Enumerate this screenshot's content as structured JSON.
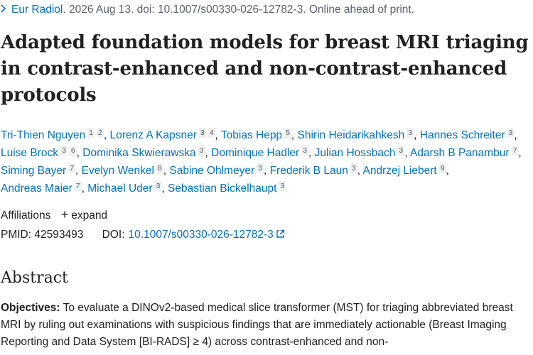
{
  "citation": {
    "journal": "Eur Radiol",
    "rest": ". 2026 Aug 13. doi: 10.1007/s00330-026-12782-3. Online ahead of print."
  },
  "title": "Adapted foundation models for breast MRI triaging in contrast-enhanced and non-contrast-enhanced protocols",
  "authors": [
    {
      "name": "Tri-Thien Nguyen",
      "affs": [
        "1",
        "2"
      ]
    },
    {
      "name": "Lorenz A Kapsner",
      "affs": [
        "3",
        "4"
      ]
    },
    {
      "name": "Tobias Hepp",
      "affs": [
        "5"
      ]
    },
    {
      "name": "Shirin Heidarikahkesh",
      "affs": [
        "3"
      ]
    },
    {
      "name": "Hannes Schreiter",
      "affs": [
        "3"
      ]
    },
    {
      "name": "Luise Brock",
      "affs": [
        "3",
        "6"
      ]
    },
    {
      "name": "Dominika Skwierawska",
      "affs": [
        "3"
      ]
    },
    {
      "name": "Dominique Hadler",
      "affs": [
        "3"
      ]
    },
    {
      "name": "Julian Hossbach",
      "affs": [
        "3"
      ]
    },
    {
      "name": "Adarsh B Panambur",
      "affs": [
        "7"
      ]
    },
    {
      "name": "Siming Bayer",
      "affs": [
        "7"
      ]
    },
    {
      "name": "Evelyn Wenkel",
      "affs": [
        "8"
      ]
    },
    {
      "name": "Sabine Ohlmeyer",
      "affs": [
        "3"
      ]
    },
    {
      "name": "Frederik B Laun",
      "affs": [
        "3"
      ]
    },
    {
      "name": "Andrzej Liebert",
      "affs": [
        "9"
      ]
    },
    {
      "name": "Andreas Maier",
      "affs": [
        "7"
      ]
    },
    {
      "name": "Michael Uder",
      "affs": [
        "3"
      ]
    },
    {
      "name": "Sebastian Bickelhaupt",
      "affs": [
        "3"
      ]
    }
  ],
  "affiliations": {
    "label": "Affiliations",
    "expand_label": "expand"
  },
  "ids": {
    "pmid_label": "PMID:",
    "pmid": "42593493",
    "doi_label": "DOI:",
    "doi": "10.1007/s00330-026-12782-3"
  },
  "abstract": {
    "heading": "Abstract",
    "objectives_label": "Objectives:",
    "objectives_text": "To evaluate a DINOv2-based medical slice transformer (MST) for triaging abbreviated breast MRI by ruling out examinations with suspicious findings that are immediately actionable (Breast Imaging Reporting and Data System [BI-RADS] ≥ 4) across contrast-enhanced and non-"
  },
  "colors": {
    "link": "#0071bc",
    "text": "#212121",
    "muted": "#5b616b"
  }
}
